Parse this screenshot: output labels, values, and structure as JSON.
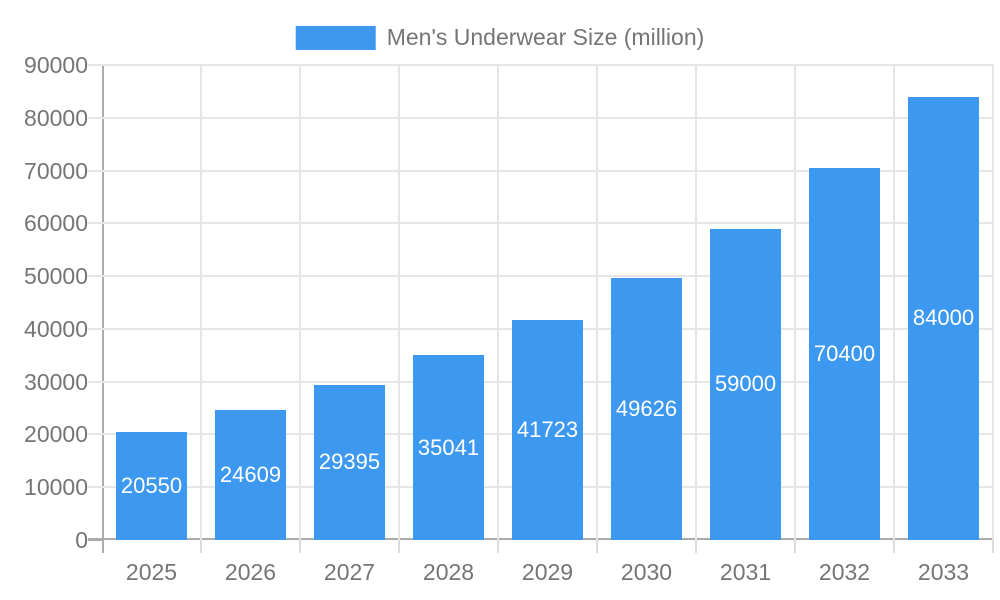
{
  "legend": {
    "label": "Men's Underwear Size (million)"
  },
  "chart_data": {
    "type": "bar",
    "title": "Men's Underwear Size (million)",
    "categories": [
      "2025",
      "2026",
      "2027",
      "2028",
      "2029",
      "2030",
      "2031",
      "2032",
      "2033"
    ],
    "values": [
      20550,
      24609,
      29395,
      35041,
      41723,
      49626,
      59000,
      70400,
      84000
    ],
    "series": [
      {
        "name": "Men's Underwear Size (million)",
        "values": [
          20550,
          24609,
          29395,
          35041,
          41723,
          49626,
          59000,
          70400,
          84000
        ]
      }
    ],
    "xlabel": "",
    "ylabel": "",
    "ylim": [
      0,
      90000
    ],
    "yticks": [
      0,
      10000,
      20000,
      30000,
      40000,
      50000,
      60000,
      70000,
      80000,
      90000
    ],
    "grid": true,
    "legend_position": "top-center",
    "value_label_position": "inside-center",
    "colors": {
      "bar": "#3D98F0",
      "bar_label": "#FFFFFF",
      "grid": "#E6E6E6",
      "axis": "#ABABAB",
      "tick": "#DBDBDB",
      "text": "#757575",
      "background": "#FFFFFF"
    }
  }
}
